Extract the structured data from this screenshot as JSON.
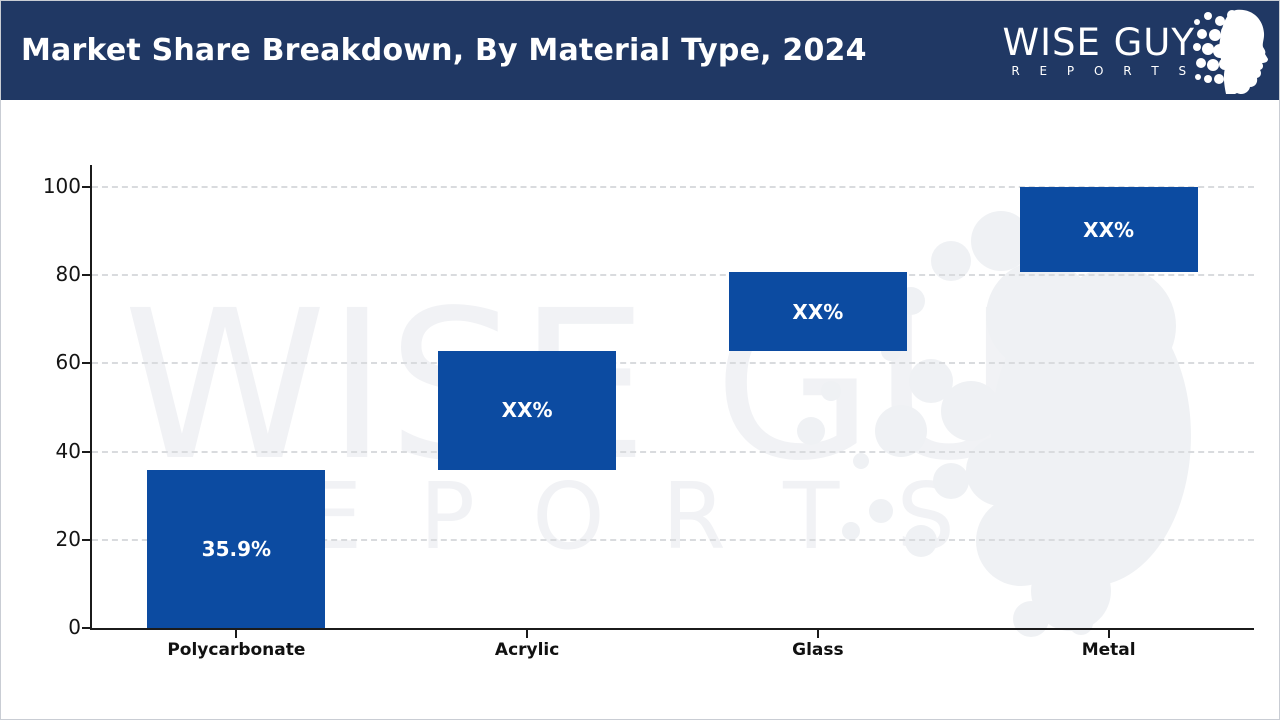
{
  "header": {
    "title": "Market Share Breakdown, By Material Type, 2024",
    "logo": {
      "line1": "WISE GUY",
      "line2": "R E P O R T S",
      "head_icon": "dotted-head-profile-icon"
    }
  },
  "watermark": {
    "line1": "WISE GUY",
    "line2": "R E P O R T S"
  },
  "colors": {
    "header_bg": "#203864",
    "bar": "#0c4ba1",
    "bar_label": "#ffffff",
    "grid": "#d9dbde",
    "axis": "#1b1b1b",
    "watermark": "#f1f2f5",
    "frame_border": "#c9cdd4"
  },
  "chart_data": {
    "type": "bar",
    "subtype": "waterfall",
    "title": "Market Share Breakdown, By Material Type, 2024",
    "categories": [
      "Polycarbonate",
      "Acrylic",
      "Glass",
      "Metal"
    ],
    "segments": [
      {
        "category": "Polycarbonate",
        "start": 0,
        "end": 35.9,
        "label": "35.9%"
      },
      {
        "category": "Acrylic",
        "start": 35.9,
        "end": 62.8,
        "label": "XX%"
      },
      {
        "category": "Glass",
        "start": 62.8,
        "end": 80.7,
        "label": "XX%"
      },
      {
        "category": "Metal",
        "start": 80.7,
        "end": 100,
        "label": "XX%"
      }
    ],
    "xlabel": "",
    "ylabel": "",
    "ylim": [
      0,
      100
    ],
    "yticks": [
      0,
      20,
      40,
      60,
      80,
      100
    ],
    "grid": "horizontal-dashed",
    "legend": false
  }
}
